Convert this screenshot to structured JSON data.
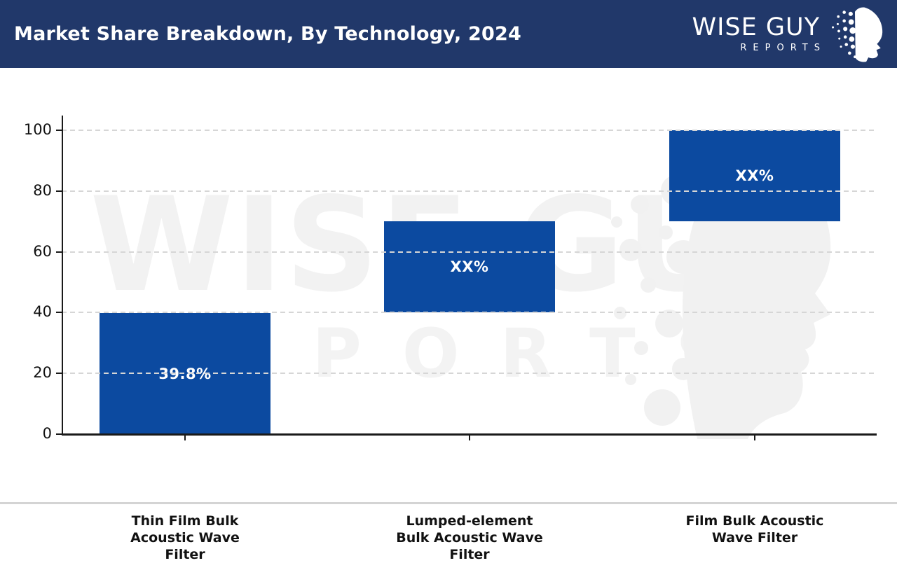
{
  "header": {
    "title": "Market Share Breakdown, By Technology, 2024",
    "logo": {
      "name": "WISE GUY",
      "sub": "REPORTS"
    }
  },
  "watermark": {
    "name": "WISE GUY",
    "sub": "REPORTS"
  },
  "chart_data": {
    "type": "bar",
    "subtype": "floating-waterfall",
    "title": "Market Share Breakdown, By Technology, 2024",
    "categories": [
      "Thin Film Bulk\nAcoustic Wave\nFilter",
      "Lumped-element\nBulk Acoustic Wave\nFilter",
      "Film Bulk Acoustic\nWave Filter"
    ],
    "series": [
      {
        "name": "Market share (%)",
        "segments": [
          {
            "start": 0,
            "end": 39.8,
            "label": "39.8%"
          },
          {
            "start": 40,
            "end": 70,
            "label": "XX%"
          },
          {
            "start": 70,
            "end": 100,
            "label": "XX%"
          }
        ]
      }
    ],
    "ylim": [
      0,
      100
    ],
    "yticks": [
      0,
      20,
      40,
      60,
      80,
      100
    ],
    "xlabel": "",
    "ylabel": "",
    "grid": "horizontal-dashed-over-bars",
    "legend": "none"
  },
  "colors": {
    "header_bg": "#21386a",
    "bar": "#0c4aa0",
    "grid": "#d6d6d6",
    "axis": "#1a1a1a",
    "watermark": "#f1f1f1",
    "value_label": "#ffffff",
    "bottom_border": "#d4d4d4"
  }
}
